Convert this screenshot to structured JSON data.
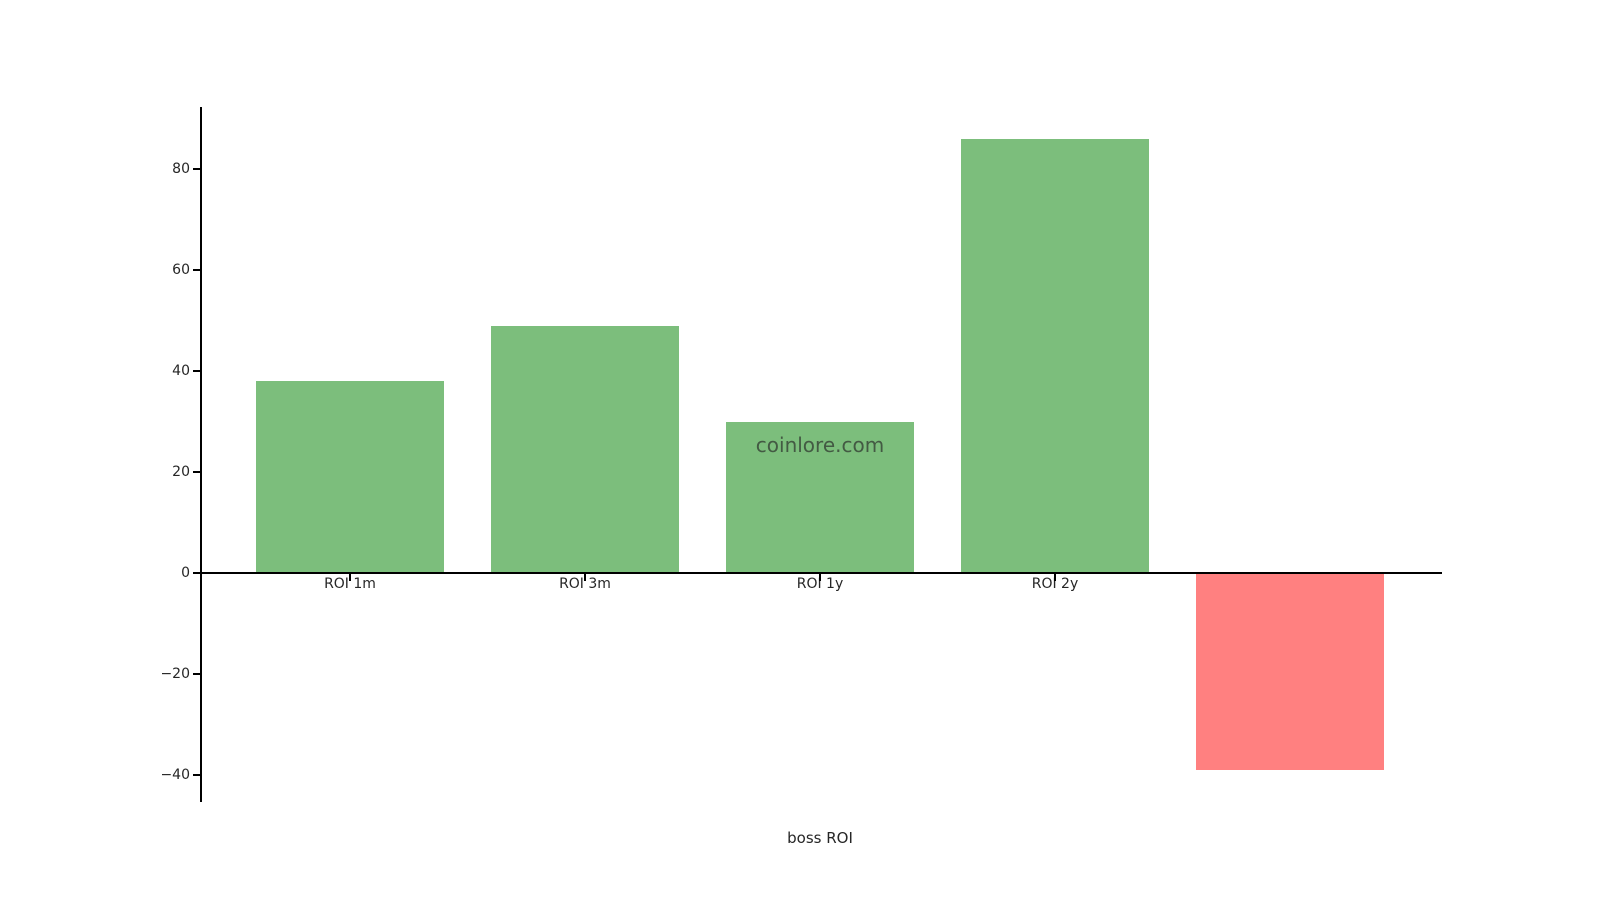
{
  "watermark": "coinlore.com",
  "chart_data": {
    "type": "bar",
    "title": "",
    "xlabel": "boss ROI",
    "ylabel": "",
    "categories": [
      "ROI 1m",
      "ROI 3m",
      "ROI 1y",
      "ROI 2y",
      ""
    ],
    "values": [
      38,
      49,
      30,
      86,
      -39
    ],
    "yticks": [
      80,
      60,
      40,
      20,
      0,
      -20,
      -40
    ],
    "ylim": [
      -45.3,
      92.3
    ],
    "grid": false,
    "legend": false,
    "colors": {
      "positive_bar": "#7cbe7c",
      "negative_bar": "#ff8080",
      "axis": "#000000",
      "text": "#262626"
    }
  }
}
